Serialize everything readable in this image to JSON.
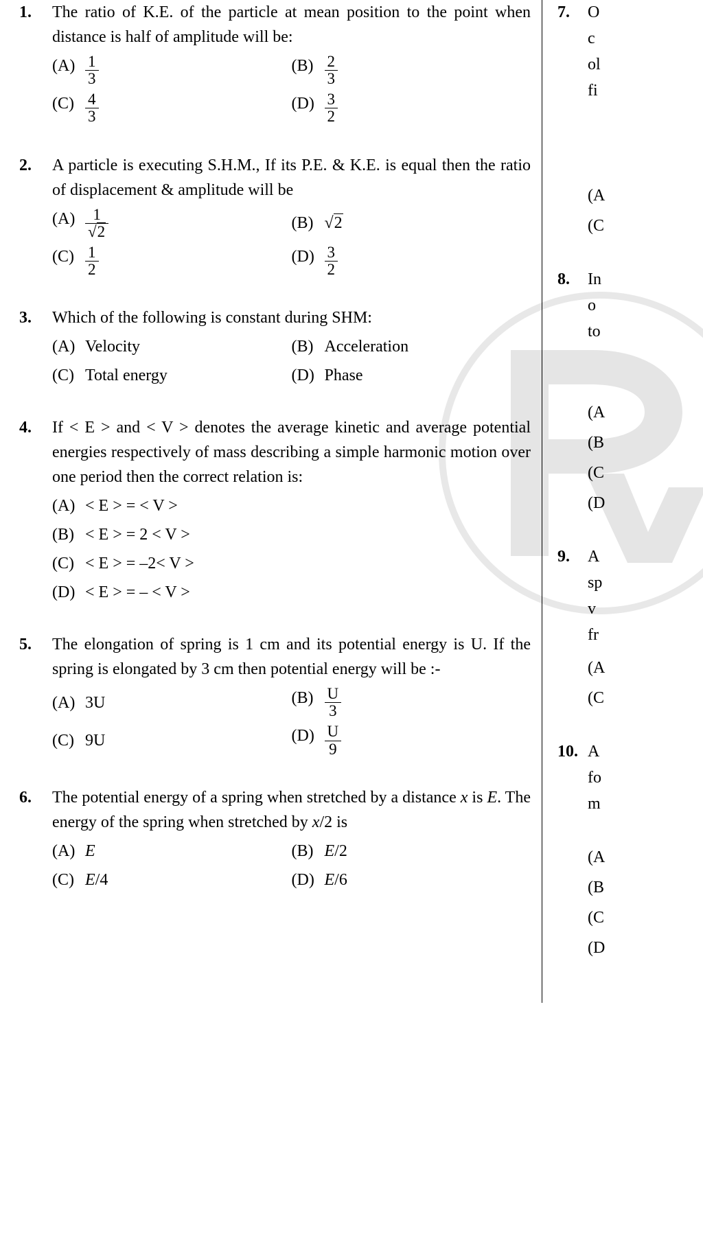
{
  "questions": [
    {
      "num": "1.",
      "text": "The ratio of K.E. of the particle at mean position to the point when distance is half of amplitude will be:",
      "options": [
        {
          "label": "(A)",
          "frac": {
            "num": "1",
            "den": "3"
          }
        },
        {
          "label": "(B)",
          "frac": {
            "num": "2",
            "den": "3"
          }
        },
        {
          "label": "(C)",
          "frac": {
            "num": "4",
            "den": "3"
          }
        },
        {
          "label": "(D)",
          "frac": {
            "num": "3",
            "den": "2"
          }
        }
      ]
    },
    {
      "num": "2.",
      "text": "A particle is executing S.H.M., If its P.E. & K.E. is equal then the ratio of displacement & amplitude will be",
      "options": [
        {
          "label": "(A)",
          "frac_sqrt_den": {
            "num": "1",
            "den": "2"
          }
        },
        {
          "label": "(B)",
          "sqrt": "2"
        },
        {
          "label": "(C)",
          "frac": {
            "num": "1",
            "den": "2"
          }
        },
        {
          "label": "(D)",
          "frac": {
            "num": "3",
            "den": "2"
          }
        }
      ]
    },
    {
      "num": "3.",
      "text": "Which of the following is constant during SHM:",
      "options": [
        {
          "label": "(A)",
          "text": "Velocity"
        },
        {
          "label": "(B)",
          "text": "Acceleration"
        },
        {
          "label": "(C)",
          "text": "Total energy"
        },
        {
          "label": "(D)",
          "text": "Phase"
        }
      ]
    },
    {
      "num": "4.",
      "text": "If < E > and < V > denotes the average kinetic and average potential energies respectively of mass describing a simple harmonic motion over one period then the correct relation is:",
      "options_full": [
        {
          "label": "(A)",
          "text": "< E > = < V >"
        },
        {
          "label": "(B)",
          "text": "< E > = 2 < V >"
        },
        {
          "label": "(C)",
          "text": "< E > = –2< V >"
        },
        {
          "label": "(D)",
          "text": "< E > = – < V >"
        }
      ]
    },
    {
      "num": "5.",
      "text": "The elongation of spring is 1 cm and its potential energy is U. If the spring is elongated by 3 cm then potential energy will be :-",
      "options": [
        {
          "label": "(A)",
          "text": "3U"
        },
        {
          "label": "(B)",
          "frac": {
            "num": "U",
            "den": "3"
          }
        },
        {
          "label": "(C)",
          "text": "9U"
        },
        {
          "label": "(D)",
          "frac": {
            "num": "U",
            "den": "9"
          }
        }
      ]
    },
    {
      "num": "6.",
      "text_html": "The potential energy of a spring when stretched by a distance <i>x</i> is <i>E</i>. The energy of the spring when stretched by <i>x</i>/2 is",
      "options": [
        {
          "label": "(A)",
          "italic": "E"
        },
        {
          "label": "(B)",
          "italic_frac": "E/2"
        },
        {
          "label": "(C)",
          "italic_frac": "E/4"
        },
        {
          "label": "(D)",
          "italic_frac": "E/6"
        }
      ]
    }
  ],
  "right_col": [
    {
      "num": "7.",
      "lines": [
        "O",
        "c",
        "ol",
        "fi"
      ],
      "opts": [
        "(A",
        "(C"
      ],
      "gap_after_lines": 115
    },
    {
      "num": "8.",
      "lines": [
        "In",
        "o",
        "to"
      ],
      "opts": [
        "(A",
        "(B",
        "(C",
        "(D"
      ],
      "gap_after_lines": 80
    },
    {
      "num": "9.",
      "lines": [
        "A",
        "sp",
        "v",
        "fr"
      ],
      "opts": [
        "(A",
        "(C"
      ],
      "gap_after_lines": 10
    },
    {
      "num": "10.",
      "lines": [
        "A",
        "fo",
        "m"
      ],
      "opts": [
        "(A",
        "(B",
        "(C",
        "(D"
      ],
      "gap_after_lines": 40
    }
  ],
  "watermark": {
    "outer_color": "#3a3a3a",
    "bg_color": "#ffffff",
    "letter_color": "#1a1a1a"
  }
}
